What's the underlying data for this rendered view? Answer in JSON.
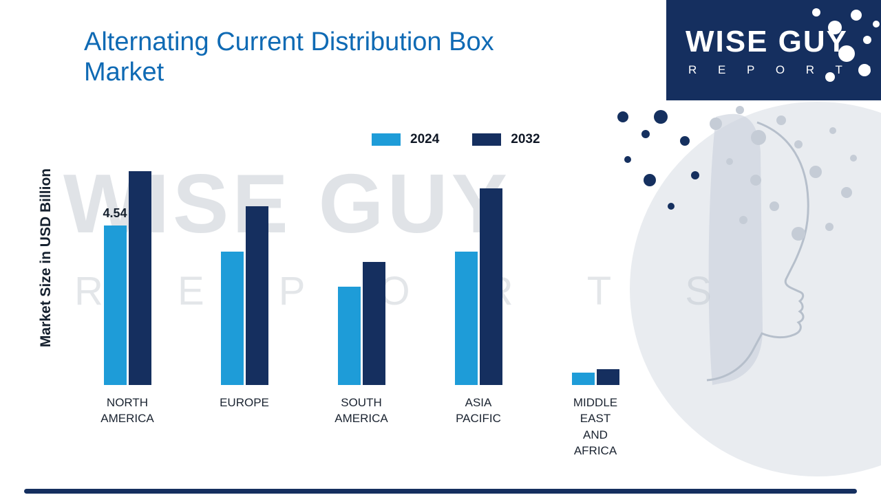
{
  "page": {
    "title": "Alternating Current Distribution Box Market"
  },
  "logo": {
    "line1": "WISE GUY",
    "line2": "R E P O R T S"
  },
  "watermark": {
    "line1": "WISE GUY",
    "line2": "R E P O R T S"
  },
  "legend": [
    {
      "label": "2024",
      "color": "#1e9cd8"
    },
    {
      "label": "2032",
      "color": "#152f5f"
    }
  ],
  "colors": {
    "title_blue": "#0f6ab4",
    "navy": "#152f5f",
    "light_blue": "#1e9cd8"
  },
  "chart_data": {
    "type": "bar",
    "title": "Alternating Current Distribution Box Market",
    "xlabel": "",
    "ylabel": "Market Size in USD Billion",
    "ylim": [
      0,
      7
    ],
    "grid": false,
    "legend_position": "top",
    "categories": [
      "NORTH AMERICA",
      "EUROPE",
      "SOUTH AMERICA",
      "ASIA PACIFIC",
      "MIDDLE EAST AND AFRICA"
    ],
    "series": [
      {
        "name": "2024",
        "color": "#1e9cd8",
        "values": [
          4.54,
          3.8,
          2.8,
          3.8,
          0.35
        ]
      },
      {
        "name": "2032",
        "color": "#152f5f",
        "values": [
          6.1,
          5.1,
          3.5,
          5.6,
          0.45
        ]
      }
    ],
    "annotations": [
      {
        "series": "2024",
        "category": "NORTH AMERICA",
        "text": "4.54"
      }
    ]
  }
}
